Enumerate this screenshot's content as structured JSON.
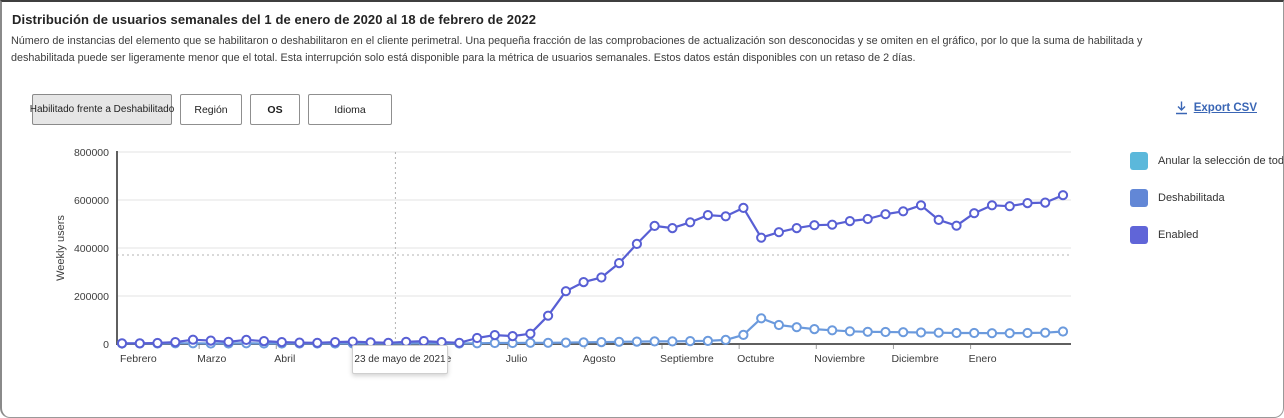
{
  "header": {
    "title": "Distribución de usuarios semanales del 1 de enero de 2020 al 18 de febrero de 2022",
    "description": "Número de instancias del elemento que se habilitaron o deshabilitaron en el cliente perimetral. Una pequeña fracción de las comprobaciones de actualización son desconocidas y se omiten en el gráfico, por lo que la suma de habilitada y deshabilitada puede ser ligeramente menor que el total. Esta interrupción solo está disponible para la métrica de usuarios semanales. Estos datos están disponibles con un retaso de 2 días."
  },
  "toolbar": {
    "filters": [
      {
        "label": "Habilitado frente a Deshabilitado",
        "selected": true
      },
      {
        "label": "Región",
        "selected": false
      },
      {
        "label": "OS",
        "selected": false,
        "bold": true
      },
      {
        "label": "Idioma",
        "selected": false
      }
    ],
    "export_label": "Export CSV"
  },
  "tooltip": {
    "label": "23 de mayo de 2021"
  },
  "legend": {
    "items": [
      {
        "label": "Anular la selección de todo",
        "color": "#5bb8db"
      },
      {
        "label": "Deshabilitada",
        "color": "#6287d6"
      },
      {
        "label": "Enabled",
        "color": "#6065d8"
      }
    ]
  },
  "chart_data": {
    "type": "line",
    "title": "Distribución de usuarios semanales",
    "ylabel": "Weekly users",
    "xlabel": "",
    "ylim": [
      0,
      800000
    ],
    "yticks": [
      0,
      200000,
      400000,
      600000,
      800000
    ],
    "grid": true,
    "legend_position": "right",
    "x_month_labels": [
      "Febrero",
      "Marzo",
      "Abril",
      "Mayo",
      "June",
      "Julio",
      "Agosto",
      "Septiembre",
      "Octubre",
      "Noviembre",
      "Diciembre",
      "Enero"
    ],
    "crosshair": {
      "x_week_index": 15.4,
      "y_value": 371000,
      "label": "23 de mayo de 2021"
    },
    "series": [
      {
        "name": "Deshabilitada",
        "color": "#6b9add",
        "values": [
          2000,
          2000,
          2000,
          3000,
          3000,
          2000,
          2000,
          3000,
          2000,
          2000,
          2000,
          2000,
          2000,
          2000,
          2000,
          2000,
          2000,
          3000,
          2000,
          2000,
          3000,
          4000,
          4000,
          5000,
          5000,
          6000,
          7000,
          8000,
          9000,
          10000,
          11000,
          11000,
          12000,
          13000,
          17000,
          38000,
          107000,
          79000,
          70000,
          62000,
          57000,
          53000,
          51000,
          50000,
          49000,
          48000,
          47000,
          46000,
          46000,
          45000,
          45000,
          46000,
          47000,
          52000
        ]
      },
      {
        "name": "Enabled",
        "color": "#585fd4",
        "values": [
          3000,
          3000,
          4000,
          8000,
          18000,
          14000,
          9000,
          17000,
          12000,
          8000,
          6000,
          5000,
          8000,
          10000,
          7000,
          5000,
          9000,
          12000,
          8000,
          5000,
          25000,
          37000,
          33000,
          43000,
          118000,
          220000,
          258000,
          277000,
          337000,
          417000,
          492000,
          483000,
          507000,
          537000,
          532000,
          567000,
          443000,
          466000,
          483000,
          495000,
          497000,
          512000,
          521000,
          541000,
          553000,
          578000,
          517000,
          493000,
          545000,
          578000,
          574000,
          587000,
          589000,
          620000
        ]
      }
    ]
  }
}
